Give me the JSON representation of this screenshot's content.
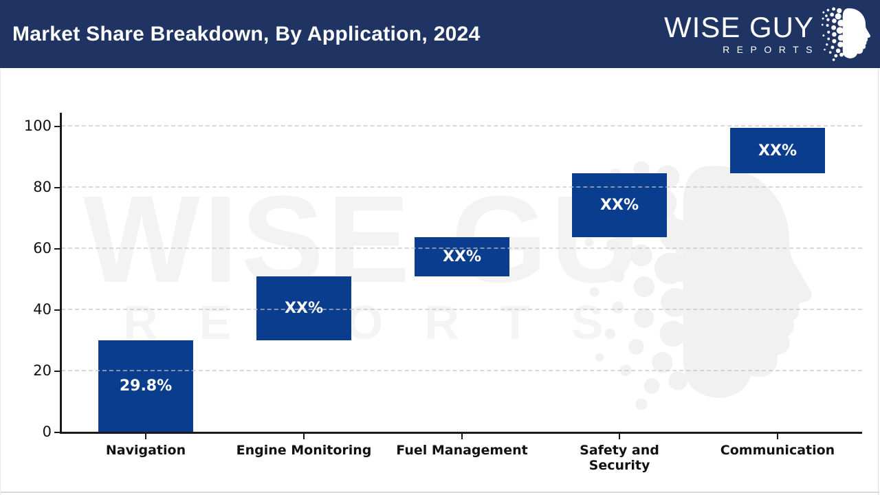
{
  "header": {
    "title": "Market Share Breakdown, By Application, 2024",
    "logo": {
      "wordmark": "WISE GUY",
      "subtitle": "REPORTS"
    },
    "bg_color": "#1f3463"
  },
  "watermark": {
    "wordmark": "WISE GUY",
    "subtitle": "REPORTS"
  },
  "chart_data": {
    "type": "bar",
    "subtype": "waterfall",
    "title": "Market Share Breakdown, By Application, 2024",
    "categories": [
      "Navigation",
      "Engine Monitoring",
      "Fuel Management",
      "Safety and Security",
      "Communication"
    ],
    "segments": [
      {
        "category": "Navigation",
        "value_start": 0,
        "value_end": 29.8,
        "label": "29.8%"
      },
      {
        "category": "Engine Monitoring",
        "value_start": 29.8,
        "value_end": 50.8,
        "label": "XX%"
      },
      {
        "category": "Fuel Management",
        "value_start": 50.8,
        "value_end": 63.6,
        "label": "XX%"
      },
      {
        "category": "Safety and Security",
        "value_start": 63.6,
        "value_end": 84.6,
        "label": "XX%"
      },
      {
        "category": "Communication",
        "value_start": 84.6,
        "value_end": 99.3,
        "label": "XX%"
      }
    ],
    "y_ticks": [
      0,
      20,
      40,
      60,
      80,
      100
    ],
    "ylim": [
      0,
      105
    ],
    "xlabel": "",
    "ylabel": "",
    "grid": "horizontal-dashed",
    "legend": "none",
    "bar_color": "#0b3d8f",
    "bar_label_color": "#ffffff",
    "axis_color": "#1a1a1a"
  }
}
